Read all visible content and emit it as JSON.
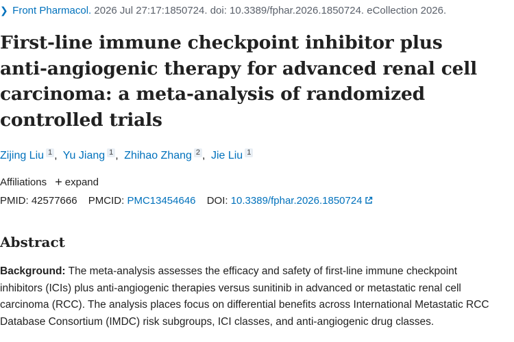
{
  "citation": {
    "journal": "Front Pharmacol.",
    "details": "2026 Jul 27:17:1850724. doi: 10.3389/fphar.2026.1850724. eCollection 2026."
  },
  "title": "First-line immune checkpoint inhibitor plus anti-angiogenic therapy for advanced renal cell carcinoma: a meta-analysis of randomized controlled trials",
  "authors": [
    {
      "name": "Zijing Liu",
      "aff": "1"
    },
    {
      "name": "Yu Jiang",
      "aff": "1"
    },
    {
      "name": "Zhihao Zhang",
      "aff": "2"
    },
    {
      "name": "Jie Liu",
      "aff": "1"
    }
  ],
  "affiliations": {
    "label": "Affiliations",
    "toggle": "expand"
  },
  "ids": {
    "pmid_label": "PMID:",
    "pmid": "42577666",
    "pmcid_label": "PMCID:",
    "pmcid": "PMC13454646",
    "doi_label": "DOI:",
    "doi": "10.3389/fphar.2026.1850724"
  },
  "abstract": {
    "heading": "Abstract",
    "background_label": "Background:",
    "background_text": "The meta-analysis assesses the efficacy and safety of first-line immune checkpoint inhibitors (ICIs) plus anti-angiogenic therapies versus sunitinib in advanced or metastatic renal cell carcinoma (RCC). The analysis places focus on differential benefits across International Metastatic RCC Database Consortium (IMDC) risk subgroups, ICI classes, and anti-angiogenic drug classes."
  },
  "colors": {
    "link": "#0071bc",
    "text": "#212121",
    "muted": "#5b616b"
  },
  "icons": {
    "chevron": "chevron-right-icon",
    "plus": "plus-icon",
    "external": "external-link-icon"
  }
}
